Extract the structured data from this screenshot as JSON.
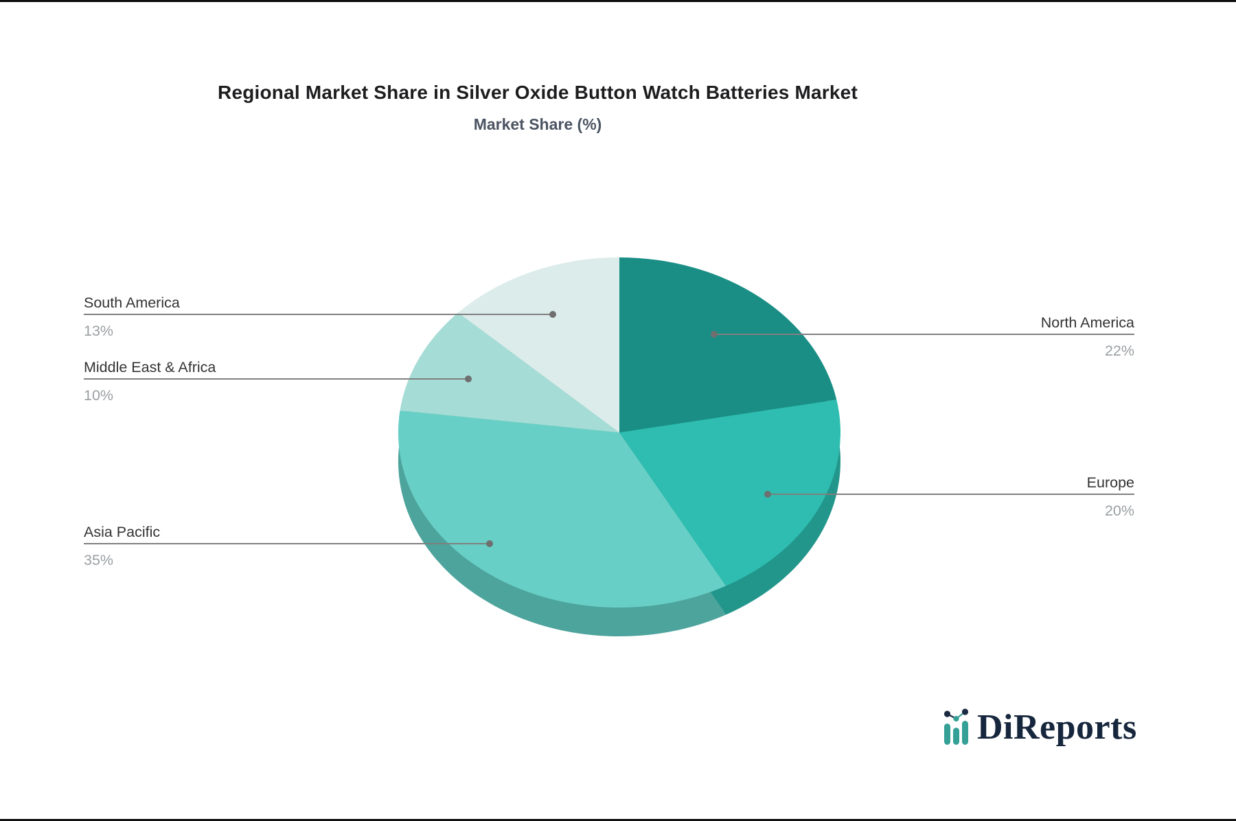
{
  "window": {
    "background": "#ffffff",
    "edge_color": "#0d0d0d"
  },
  "chart_data": {
    "type": "pie",
    "title": "Regional Market Share in Silver Oxide Button Watch Batteries Market",
    "subtitle": "Market Share (%)",
    "unit": "%",
    "effect": "3d-depth",
    "start_angle_deg": 0,
    "direction": "clockwise",
    "legend_position": "callout-labels",
    "label_color": "#333333",
    "pct_color": "#9aa0a3",
    "line_color": "#7f7f7f",
    "dot_color": "#6f6f6f",
    "series": [
      {
        "label": "North America",
        "value": 22,
        "display": "22%",
        "color": "#1a8e85",
        "depth_color": "#147169"
      },
      {
        "label": "Europe",
        "value": 20,
        "display": "20%",
        "color": "#2ebdb0",
        "depth_color": "#23968c"
      },
      {
        "label": "Asia Pacific",
        "value": 35,
        "display": "35%",
        "color": "#68cfc6",
        "depth_color": "#4da49c"
      },
      {
        "label": "Middle East & Africa",
        "value": 10,
        "display": "10%",
        "color": "#a6dcd6",
        "depth_color": "#7fb5ae"
      },
      {
        "label": "South America",
        "value": 13,
        "display": "13%",
        "color": "#dcecea",
        "depth_color": "#b2cdc9"
      }
    ]
  },
  "logo": {
    "text": "DiReports",
    "icon": "bar-line-chart-icon",
    "text_color": "#16263c",
    "accent_color": "#35a096",
    "dark_color": "#1b2a42"
  }
}
